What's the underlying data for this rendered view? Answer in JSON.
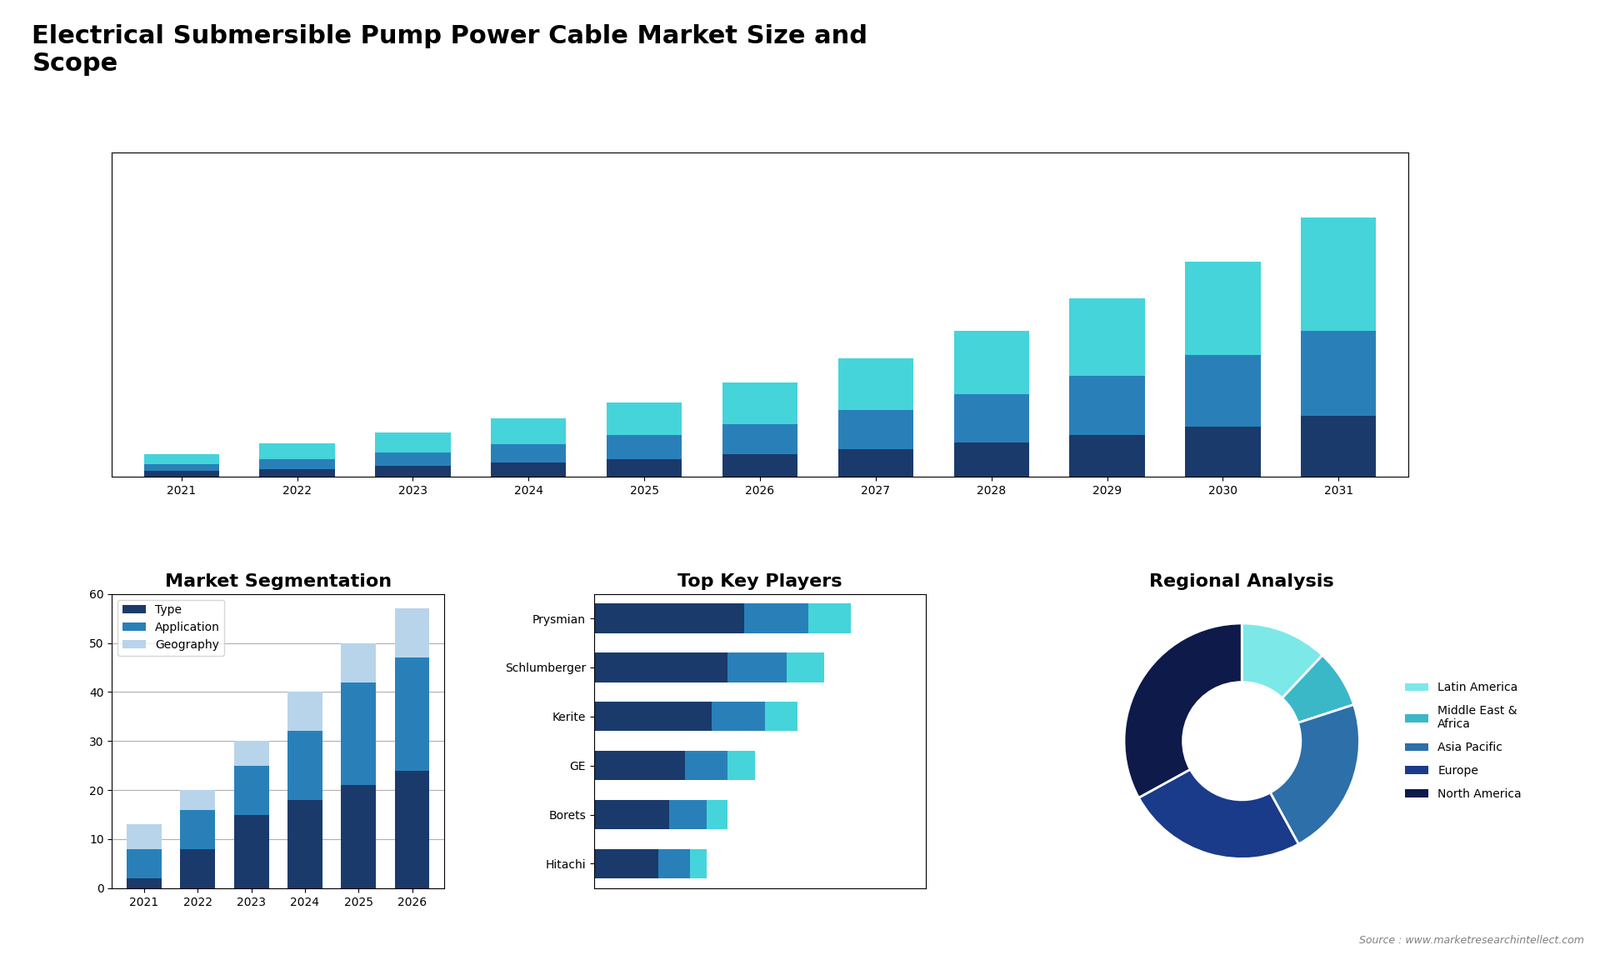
{
  "title": "Electrical Submersible Pump Power Cable Market Size and\nScope",
  "annotations": [
    "Source : www.marketresearchintellect.com"
  ],
  "chart_data": [
    {
      "type": "bar",
      "stacked": true,
      "tick_labels": "x",
      "categories": [
        "2021",
        "2022",
        "2023",
        "2024",
        "2025",
        "2026",
        "2027",
        "2028",
        "2029",
        "2030",
        "2031"
      ],
      "series": [
        {
          "color": "#1a3a6b",
          "values": [
            1.0,
            1.4,
            1.9,
            2.5,
            3.2,
            4.0,
            5.0,
            6.2,
            7.5,
            9.0,
            11.0
          ]
        },
        {
          "color": "#2980b9",
          "values": [
            1.2,
            1.8,
            2.5,
            3.3,
            4.3,
            5.5,
            7.0,
            8.8,
            10.8,
            13.0,
            15.5
          ]
        },
        {
          "color": "#45d4da",
          "values": [
            1.8,
            2.8,
            3.6,
            4.7,
            6.0,
            7.5,
            9.5,
            11.5,
            14.0,
            17.0,
            20.5
          ]
        }
      ],
      "ylim": [
        0,
        58.75
      ]
    },
    {
      "type": "bar",
      "stacked": true,
      "title": "Market Segmentation",
      "categories": [
        "2021",
        "2022",
        "2023",
        "2024",
        "2025",
        "2026"
      ],
      "series": [
        {
          "name": "Type",
          "color": "#1a3a6b",
          "values": [
            2,
            8,
            15,
            18,
            21,
            24
          ]
        },
        {
          "name": "Application",
          "color": "#2980b9",
          "values": [
            6,
            8,
            10,
            14,
            21,
            23
          ]
        },
        {
          "name": "Geography",
          "color": "#b8d4ea",
          "values": [
            5,
            4,
            5,
            8,
            8,
            10
          ]
        }
      ],
      "ylim": [
        0,
        60
      ],
      "yticks": [
        0,
        10,
        20,
        30,
        40,
        50,
        60
      ],
      "grid": true,
      "legend": "upper left"
    },
    {
      "type": "bar",
      "stacked": true,
      "orientation": "horizontal",
      "tick_labels": "y",
      "title": "Top Key Players",
      "categories": [
        "Prysmian",
        "Schlumberger",
        "Kerite",
        "GE",
        "Borets",
        "Hitachi"
      ],
      "series": [
        {
          "color": "#1a3a6b",
          "values": [
            28,
            25,
            22,
            17,
            14,
            12
          ]
        },
        {
          "color": "#2980b9",
          "values": [
            12,
            11,
            10,
            8,
            7,
            6
          ]
        },
        {
          "color": "#45d4da",
          "values": [
            8,
            7,
            6,
            5,
            4,
            3
          ]
        }
      ],
      "xlim": [
        0,
        62
      ]
    },
    {
      "type": "pie",
      "title": "Regional Analysis",
      "legend": "center left",
      "categories": [
        "Latin America",
        "Middle East &\nAfrica",
        "Asia Pacific",
        "Europe",
        "North America"
      ],
      "values": [
        12,
        8,
        22,
        25,
        33
      ],
      "colors": [
        "#7de8e8",
        "#3ab8c8",
        "#2d6fa8",
        "#1a3a8a",
        "#0d1a4a"
      ]
    }
  ]
}
